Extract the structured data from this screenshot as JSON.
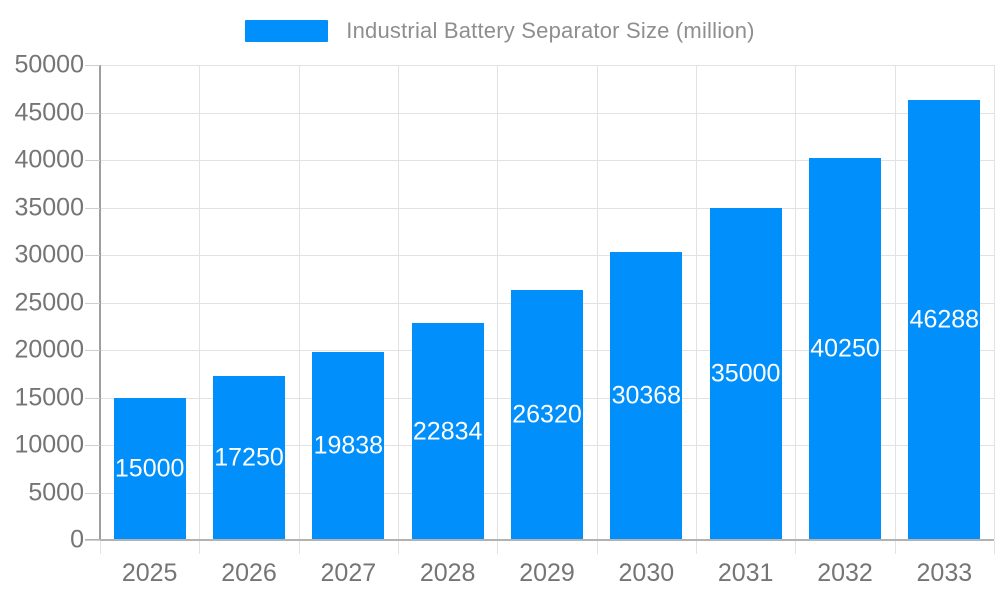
{
  "legend": {
    "label": "Industrial Battery Separator Size (million)"
  },
  "colors": {
    "background": "#ffffff",
    "bar": "#008FFB",
    "grid": "#e2e2e2",
    "x_axis_line": "#b2b2b2",
    "y_axis_line": "#9e9e9e",
    "tick": "#cfcfcf",
    "axis_label": "#757575",
    "legend_label": "#8e8e8e",
    "data_label": "#ffffff"
  },
  "chart_data": {
    "type": "bar",
    "title": "Industrial Battery Separator Size (million)",
    "categories": [
      "2025",
      "2026",
      "2027",
      "2028",
      "2029",
      "2030",
      "2031",
      "2032",
      "2033"
    ],
    "series": [
      {
        "name": "Industrial Battery Separator Size (million)",
        "values": [
          15000,
          17250,
          19838,
          22834,
          26320,
          30368,
          35000,
          40250,
          46288
        ]
      }
    ],
    "data_labels": [
      15000,
      17250,
      19838,
      22834,
      26320,
      30368,
      35000,
      40250,
      46288
    ],
    "xlabel": "",
    "ylabel": "",
    "ylim": [
      0,
      50000
    ],
    "ytick_step": 5000,
    "ytick_labels": [
      "0",
      "5000",
      "10000",
      "15000",
      "20000",
      "25000",
      "30000",
      "35000",
      "40000",
      "45000",
      "50000"
    ],
    "grid": true,
    "legend_position": "top",
    "data_label_position": "inside-center",
    "bar_color": "#008FFB"
  }
}
